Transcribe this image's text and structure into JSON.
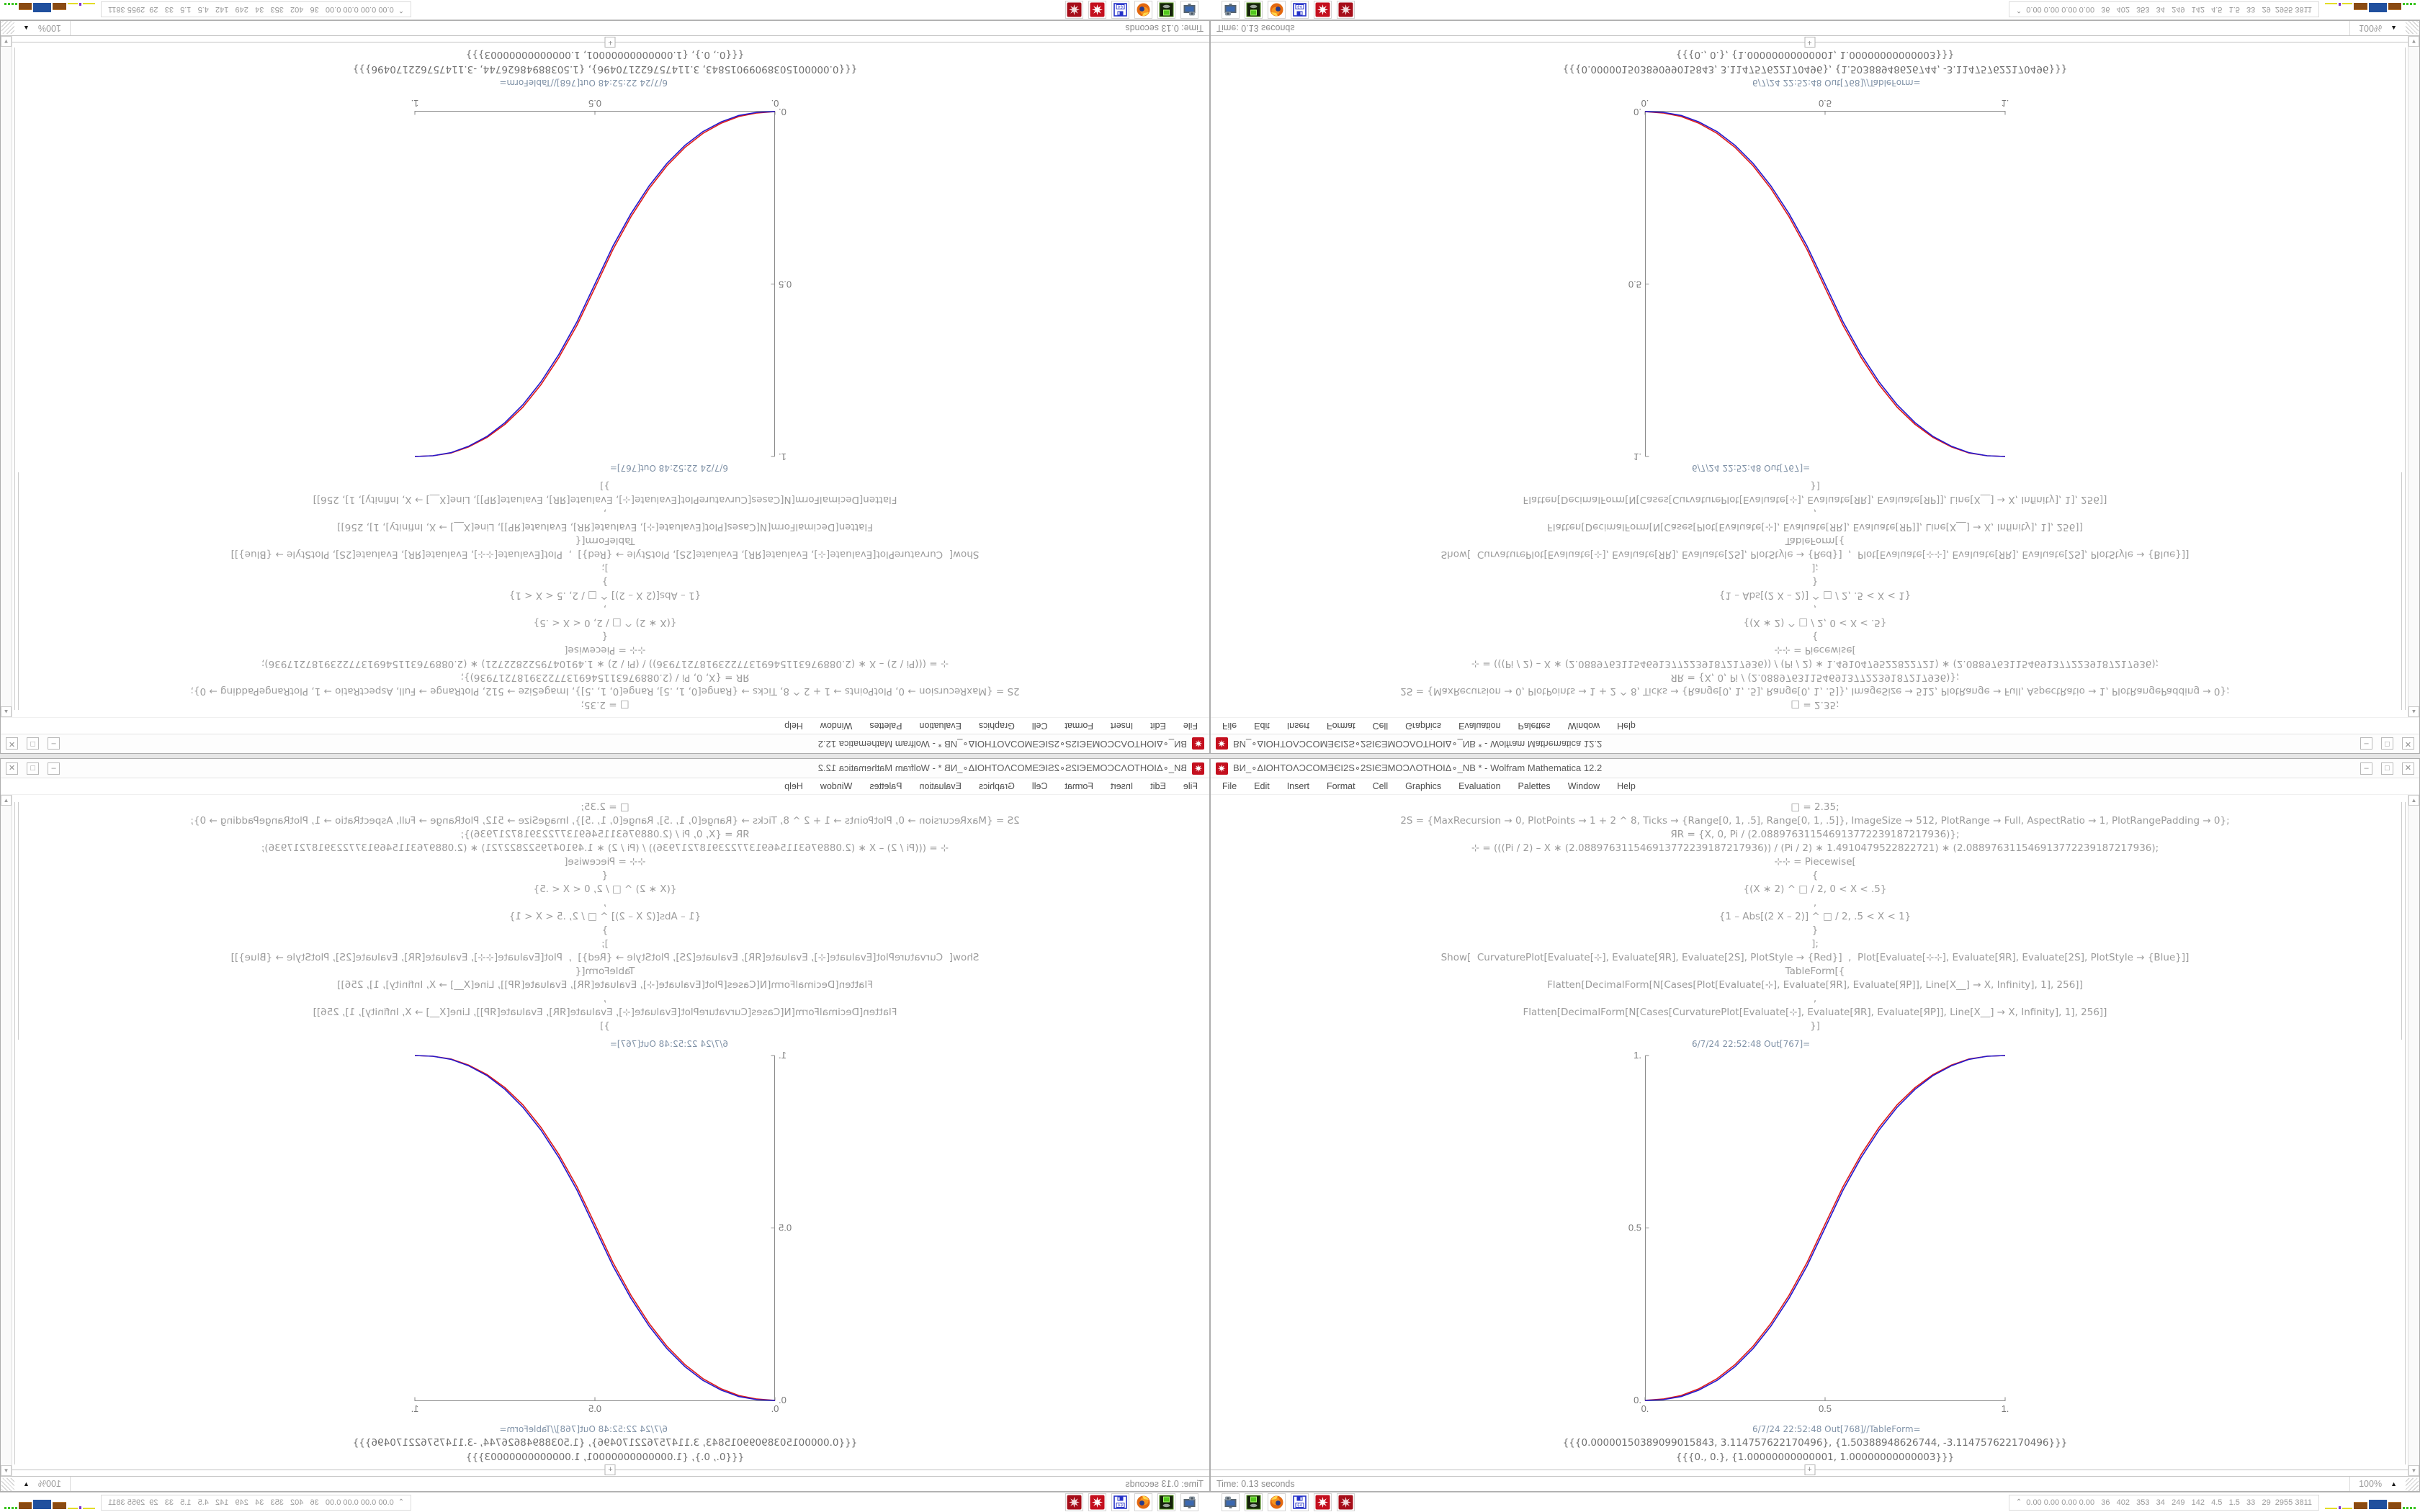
{
  "taskbar": {
    "caret": "⌃",
    "stats": "0.00 0.00 0.00 0.00   36   402   353   34   249   142   4.5   1.5   33   29  2955 3811",
    "icons": [
      "display-icon",
      "drive-icon",
      "firefox-icon",
      "floppy-64-icon",
      "mathematica-icon",
      "mathematica-icon-2"
    ],
    "floppy_label": "64"
  },
  "window": {
    "title": "ВИ_∘ΔIOHTOΛƆCOMƎЄI2S∘2SIЄƎMOƆΛOTHOIΔ∘_NB * - Wolfram Mathematica 12.2",
    "window_buttons": {
      "minimize": "–",
      "maximize": "□",
      "close": "✕"
    },
    "menu": [
      "File",
      "Edit",
      "Insert",
      "Format",
      "Cell",
      "Graphics",
      "Evaluation",
      "Palettes",
      "Window",
      "Help"
    ],
    "code_lines": [
      "□ = 2.35;",
      "2S = {MaxRecursion → 0, PlotPoints → 1 + 2 ^ 8, Ticks → {Range[0, 1, .5], Range[0, 1, .5]}, ImageSize → 512, PlotRange → Full, AspectRatio → 1, PlotRangePadding → 0};",
      "ЯR = {X, 0, Pi / (2.088976311546913772239187217936)};",
      "⊹ = (((Pi / 2) – X ∗ (2.088976311546913772239187217936)) / (Pi / 2) ∗ 1.4910479522822721) ∗ (2.088976311546913772239187217936);",
      "⊹⊹ = Piecewise[",
      "{",
      "{(X ∗ 2) ^ □ / 2, 0 < X < .5}",
      ",",
      "{1 – Abs[(2 X – 2)] ^ □ / 2, .5 < X < 1}",
      "}",
      "];",
      "Show[  CurvaturePlot[Evaluate[⊹], Evaluate[ЯR], Evaluate[2S], PlotStyle → {Red}]  ,  Plot[Evaluate[⊹⊹], Evaluate[ЯR], Evaluate[2S], PlotStyle → {Blue}]]",
      "TableForm[{",
      "Flatten[DecimalForm[N[Cases[Plot[Evaluate[⊹], Evaluate[ЯR], Evaluate[ЯP]], Line[X__] → X, Infinity], 1], 256]]",
      ",",
      "Flatten[DecimalForm[N[Cases[CurvaturePlot[Evaluate[⊹], Evaluate[ЯR], Evaluate[ЯP]], Line[X__] → X, Infinity], 1], 256]]",
      "}]"
    ],
    "out1_label": "6/7/24 22:52:48 Out[767]=",
    "out2_label": "6/7/24 22:52:48 Out[768]//TableForm=",
    "table_rows": [
      "{{{0.00000150389099015843, 3.114757622170496}, {1.50388948626744, -3.114757622170496}}}",
      "{{{0., 0.}, {1.00000000000001, 1.00000000000003}}}",
      ""
    ],
    "insert_plus": "+",
    "status": {
      "time": "Time: 0.13 seconds",
      "zoom": "100%",
      "corner_triangle": "▲"
    }
  },
  "chart_data": {
    "type": "line",
    "title": "",
    "xlabel": "",
    "ylabel": "",
    "xlim": [
      0,
      1
    ],
    "ylim": [
      0,
      1
    ],
    "xticks": {
      "values": [
        0,
        0.5,
        1
      ],
      "labels": [
        "0.",
        "0.5",
        "1."
      ]
    },
    "yticks": {
      "values": [
        0,
        0.5,
        1
      ],
      "labels": [
        "0.",
        "0.5",
        "1."
      ]
    },
    "grid": false,
    "legend": false,
    "x": [
      0,
      0.05,
      0.1,
      0.15,
      0.2,
      0.25,
      0.3,
      0.35,
      0.4,
      0.45,
      0.5,
      0.55,
      0.6,
      0.65,
      0.7,
      0.75,
      0.8,
      0.85,
      0.9,
      0.95,
      1
    ],
    "series": [
      {
        "name": "CurvaturePlot (Red)",
        "color": "#dd1b1b",
        "values": [
          0,
          0.004,
          0.014,
          0.034,
          0.063,
          0.104,
          0.157,
          0.224,
          0.305,
          0.4,
          0.511,
          0.62,
          0.713,
          0.792,
          0.857,
          0.907,
          0.945,
          0.972,
          0.99,
          0.998,
          1
        ]
      },
      {
        "name": "Plot (Blue)",
        "color": "#2318cd",
        "values": [
          0,
          0.002,
          0.011,
          0.03,
          0.058,
          0.098,
          0.15,
          0.216,
          0.296,
          0.39,
          0.5,
          0.61,
          0.704,
          0.784,
          0.85,
          0.902,
          0.942,
          0.97,
          0.989,
          0.998,
          1
        ]
      }
    ]
  }
}
